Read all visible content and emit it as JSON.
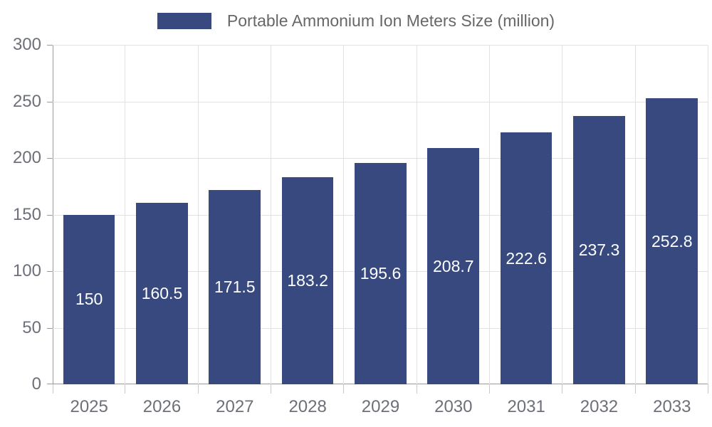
{
  "page": {
    "background": "#ffffff"
  },
  "legend": {
    "label": "Portable Ammonium Ion Meters Size (million)",
    "position": "top-center"
  },
  "colors": {
    "bar": "#37497E",
    "axis_line": "#9a9a9a",
    "gridline": "#e2e2e2",
    "axis_text": "#6e7079",
    "legend_text": "#676767",
    "bar_label_text": "#ffffff"
  },
  "chart_data": {
    "type": "bar",
    "title": "Portable Ammonium Ion Meters Size (million)",
    "categories": [
      "2025",
      "2026",
      "2027",
      "2028",
      "2029",
      "2030",
      "2031",
      "2032",
      "2033"
    ],
    "series": [
      {
        "name": "Portable Ammonium Ion Meters Size (million)",
        "values": [
          150,
          160.5,
          171.5,
          183.2,
          195.6,
          208.7,
          222.6,
          237.3,
          252.8
        ]
      }
    ],
    "value_labels": [
      "150",
      "160.5",
      "171.5",
      "183.2",
      "195.6",
      "208.7",
      "222.6",
      "237.3",
      "252.8"
    ],
    "xlabel": "",
    "ylabel": "",
    "ylim": [
      0,
      300
    ],
    "yticks": [
      0,
      50,
      100,
      150,
      200,
      250,
      300
    ],
    "grid": true,
    "legend_position": "top",
    "bar_label_position": "inside-center"
  }
}
